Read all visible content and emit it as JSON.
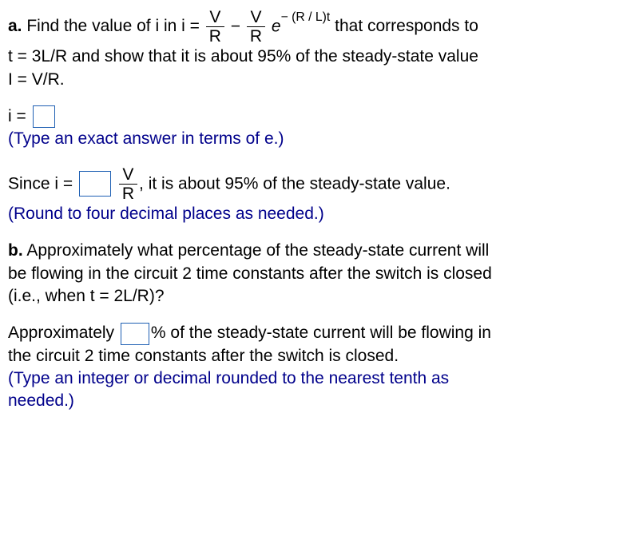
{
  "partA": {
    "label": "a.",
    "lead": "Find the value of i in i =",
    "eq": {
      "term1_num": "V",
      "term1_den": "R",
      "minus": "−",
      "term2_num": "V",
      "term2_den": "R",
      "e": "e",
      "exp": "− (R / L)t"
    },
    "trail1": "that corresponds to",
    "line2": "t = 3L/R and show that it is about 95% of the steady-state value",
    "line3": "I = V/R.",
    "answer_lead": "i =",
    "hint1": "(Type an exact answer in terms of e.)",
    "since_lead": "Since i =",
    "since_frac_num": "V",
    "since_frac_den": "R",
    "since_comma": ",",
    "since_trail": "it is about 95% of the steady-state value.",
    "hint2": "(Round to four decimal places as needed.)"
  },
  "partB": {
    "label": "b.",
    "q_line1": "Approximately what percentage of the steady-state current will",
    "q_line2": "be flowing in the circuit 2 time constants after the switch is closed",
    "q_line3": "(i.e., when t = 2L/R)?",
    "ans_lead": "Approximately",
    "ans_pct": "% of the steady-state current will be flowing in",
    "ans_line2": "the circuit 2 time constants after the switch is closed.",
    "hint_line1": "(Type an integer or decimal rounded to the nearest tenth as",
    "hint_line2": "needed.)"
  }
}
